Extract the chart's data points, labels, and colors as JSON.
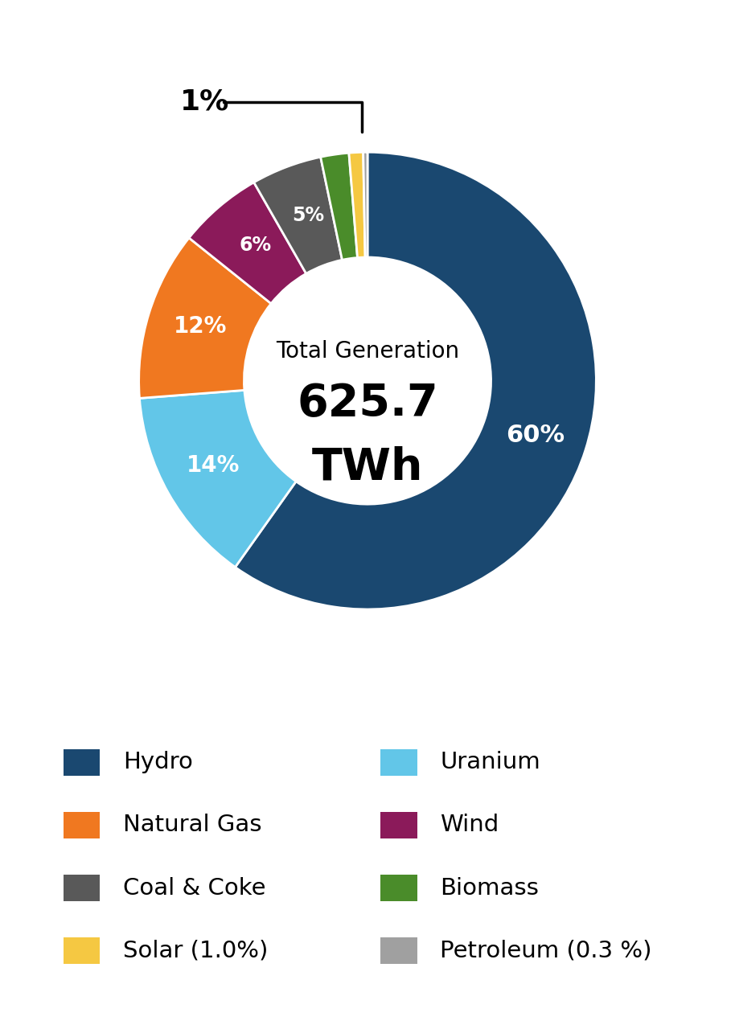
{
  "slices": [
    {
      "label": "Hydro",
      "pct": 60,
      "color": "#1a4870"
    },
    {
      "label": "Uranium",
      "pct": 14,
      "color": "#62c6e8"
    },
    {
      "label": "Natural Gas",
      "pct": 12,
      "color": "#f07820"
    },
    {
      "label": "Wind",
      "pct": 6,
      "color": "#8b1a5a"
    },
    {
      "label": "Coal & Coke",
      "pct": 5,
      "color": "#595959"
    },
    {
      "label": "Biomass",
      "pct": 2,
      "color": "#4a8c2a"
    },
    {
      "label": "Solar",
      "pct": 1.0,
      "color": "#f5c842"
    },
    {
      "label": "Petroleum",
      "pct": 0.3,
      "color": "#a0a0a0"
    }
  ],
  "center_text_line1": "Total Generation",
  "center_text_line2": "625.7",
  "center_text_line3": "TWh",
  "annotation_text": "1%",
  "legend_col1": [
    {
      "label": "Hydro",
      "color": "#1a4870"
    },
    {
      "label": "Natural Gas",
      "color": "#f07820"
    },
    {
      "label": "Coal & Coke",
      "color": "#595959"
    },
    {
      "label": "Solar (1.0%)",
      "color": "#f5c842"
    }
  ],
  "legend_col2": [
    {
      "label": "Uranium",
      "color": "#62c6e8"
    },
    {
      "label": "Wind",
      "color": "#8b1a5a"
    },
    {
      "label": "Biomass",
      "color": "#4a8c2a"
    },
    {
      "label": "Petroleum (0.3 %)",
      "color": "#a0a0a0"
    }
  ],
  "slice_labels": {
    "Hydro": {
      "text": "60%",
      "color": "white",
      "fontsize": 22
    },
    "Uranium": {
      "text": "14%",
      "color": "white",
      "fontsize": 20
    },
    "Natural Gas": {
      "text": "12%",
      "color": "white",
      "fontsize": 20
    },
    "Wind": {
      "text": "6%",
      "color": "white",
      "fontsize": 17
    },
    "Coal & Coke": {
      "text": "5%",
      "color": "white",
      "fontsize": 17
    },
    "Biomass": {
      "text": "",
      "color": "white",
      "fontsize": 14
    },
    "Solar": {
      "text": "",
      "color": "white",
      "fontsize": 14
    },
    "Petroleum": {
      "text": "",
      "color": "white",
      "fontsize": 14
    }
  },
  "background_color": "#ffffff"
}
